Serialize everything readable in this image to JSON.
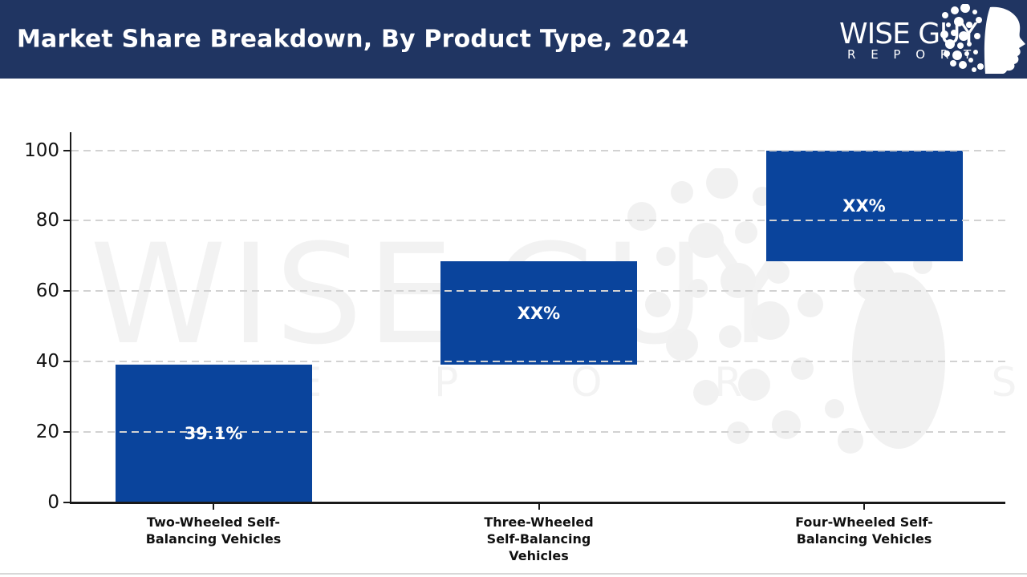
{
  "header": {
    "title": "Market Share Breakdown, By Product Type, 2024",
    "bg_color": "#203562",
    "logo": {
      "name": "WISE GUY",
      "subtitle": "R E P O R T S"
    }
  },
  "watermark": {
    "line1": "WISE GUY",
    "line2": "R E P O R T S"
  },
  "chart_data": {
    "type": "bar",
    "subtype": "waterfall",
    "title": "Market Share Breakdown, By Product Type, 2024",
    "categories": [
      "Two-Wheeled Self-Balancing Vehicles",
      "Three-Wheeled Self-Balancing Vehicles",
      "Four-Wheeled Self-Balancing Vehicles"
    ],
    "category_display": [
      "Two-Wheeled Self-\nBalancing Vehicles",
      "Three-Wheeled\nSelf-Balancing\nVehicles",
      "Four-Wheeled Self-\nBalancing Vehicles"
    ],
    "bars": [
      {
        "label": "39.1%",
        "start": 0,
        "end": 39.1
      },
      {
        "label": "XX%",
        "start": 39.1,
        "end": 68.5
      },
      {
        "label": "XX%",
        "start": 68.5,
        "end": 100
      }
    ],
    "ylim": [
      0,
      100
    ],
    "yticks": [
      0,
      20,
      40,
      60,
      80,
      100
    ],
    "xlabel": "",
    "ylabel": "",
    "legend": null,
    "grid": {
      "axis": "y",
      "style": "dashed",
      "color": "#d2d2d2",
      "above_bars": true
    },
    "colors": {
      "bar": "#0a449c",
      "value_label": "#ffffff",
      "axis": "#1a1a1a",
      "tick_label": "#111111",
      "header_bg": "#203562",
      "watermark": "#f2f2f2"
    }
  }
}
